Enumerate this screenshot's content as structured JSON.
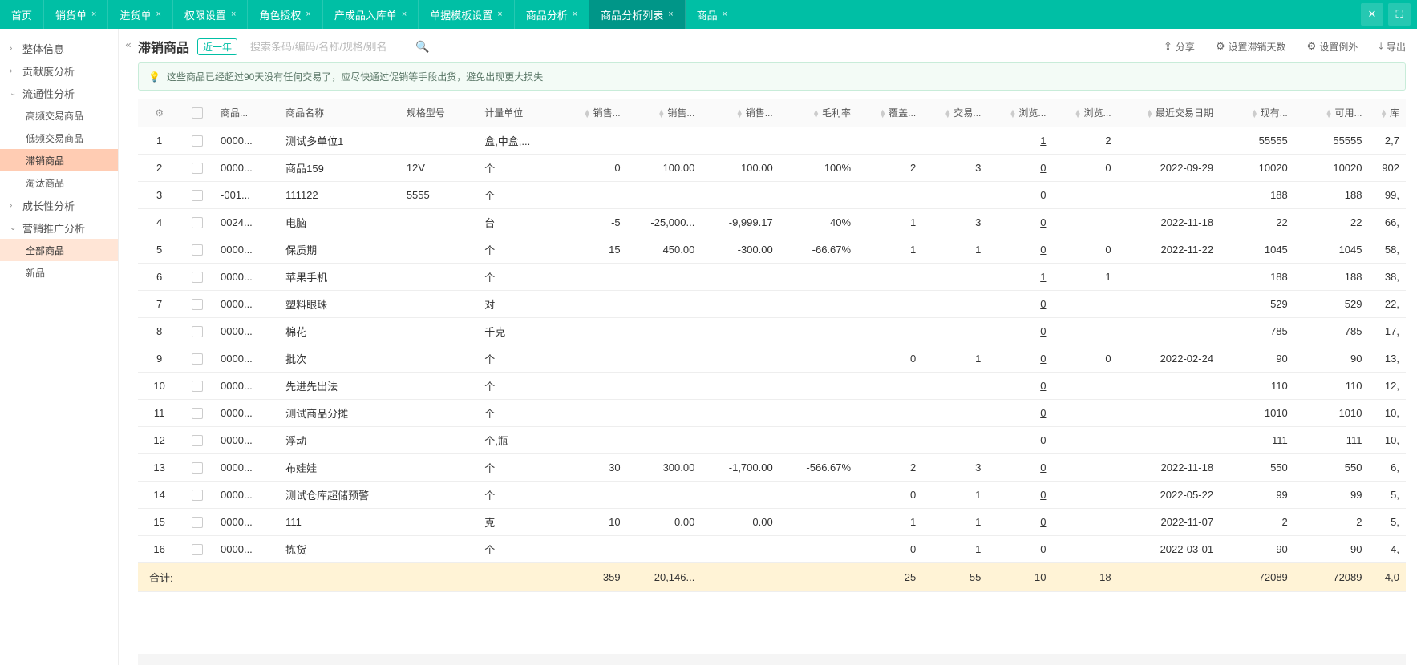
{
  "tabs": [
    {
      "label": "首页",
      "closable": false
    },
    {
      "label": "销货单",
      "closable": true
    },
    {
      "label": "进货单",
      "closable": true
    },
    {
      "label": "权限设置",
      "closable": true
    },
    {
      "label": "角色授权",
      "closable": true
    },
    {
      "label": "产成品入库单",
      "closable": true
    },
    {
      "label": "单据模板设置",
      "closable": true
    },
    {
      "label": "商品分析",
      "closable": true
    },
    {
      "label": "商品分析列表",
      "closable": true,
      "active": true
    },
    {
      "label": "商品",
      "closable": true
    }
  ],
  "sidebar": [
    {
      "label": "整体信息",
      "type": "group",
      "expanded": false
    },
    {
      "label": "贡献度分析",
      "type": "group",
      "expanded": false
    },
    {
      "label": "流通性分析",
      "type": "group",
      "expanded": true
    },
    {
      "label": "高频交易商品",
      "type": "child"
    },
    {
      "label": "低频交易商品",
      "type": "child"
    },
    {
      "label": "滞销商品",
      "type": "child",
      "active": true
    },
    {
      "label": "淘汰商品",
      "type": "child"
    },
    {
      "label": "成长性分析",
      "type": "group",
      "expanded": false
    },
    {
      "label": "营销推广分析",
      "type": "group",
      "expanded": true
    },
    {
      "label": "全部商品",
      "type": "child",
      "active2": true
    },
    {
      "label": "新品",
      "type": "child"
    }
  ],
  "header": {
    "title": "滞销商品",
    "period": "近一年",
    "searchPlaceholder": "搜索条码/编码/名称/规格/别名",
    "actions": {
      "share": "分享",
      "setDays": "设置滞销天数",
      "setException": "设置例外",
      "export": "导出"
    }
  },
  "banner": "这些商品已经超过90天没有任何交易了，应尽快通过促销等手段出货，避免出现更大损失",
  "columns": [
    "商品...",
    "商品名称",
    "规格型号",
    "计量单位",
    "销售...",
    "销售...",
    "销售...",
    "毛利率",
    "覆盖...",
    "交易...",
    "浏览...",
    "浏览...",
    "最近交易日期",
    "现有...",
    "可用...",
    "库"
  ],
  "rows": [
    {
      "idx": 1,
      "code": "0000...",
      "name": "测试多单位1",
      "spec": "",
      "unit": "盒,中盒,...",
      "s1": "",
      "s2": "",
      "s3": "",
      "gross": "",
      "cov": "",
      "trade": "",
      "brw": "1",
      "brw2": "2",
      "date": "",
      "stk": "55555",
      "avail": "55555",
      "inv": "2,7"
    },
    {
      "idx": 2,
      "code": "0000...",
      "name": "商品159",
      "spec": "12V",
      "unit": "个",
      "s1": "0",
      "s2": "100.00",
      "s3": "100.00",
      "gross": "100%",
      "cov": "2",
      "trade": "3",
      "brw": "0",
      "brw2": "0",
      "date": "2022-09-29",
      "stk": "10020",
      "avail": "10020",
      "inv": "902"
    },
    {
      "idx": 3,
      "code": "-001...",
      "name": "111122",
      "spec": "5555",
      "unit": "个",
      "s1": "",
      "s2": "",
      "s3": "",
      "gross": "",
      "cov": "",
      "trade": "",
      "brw": "0",
      "brw2": "",
      "date": "",
      "stk": "188",
      "avail": "188",
      "inv": "99,"
    },
    {
      "idx": 4,
      "code": "0024...",
      "name": "电脑",
      "spec": "",
      "unit": "台",
      "s1": "-5",
      "s2": "-25,000...",
      "s3": "-9,999.17",
      "gross": "40%",
      "cov": "1",
      "trade": "3",
      "brw": "0",
      "brw2": "",
      "date": "2022-11-18",
      "stk": "22",
      "avail": "22",
      "inv": "66,"
    },
    {
      "idx": 5,
      "code": "0000...",
      "name": "保质期",
      "spec": "",
      "unit": "个",
      "s1": "15",
      "s2": "450.00",
      "s3": "-300.00",
      "gross": "-66.67%",
      "cov": "1",
      "trade": "1",
      "brw": "0",
      "brw2": "0",
      "date": "2022-11-22",
      "stk": "1045",
      "avail": "1045",
      "inv": "58,"
    },
    {
      "idx": 6,
      "code": "0000...",
      "name": "苹果手机",
      "spec": "",
      "unit": "个",
      "s1": "",
      "s2": "",
      "s3": "",
      "gross": "",
      "cov": "",
      "trade": "",
      "brw": "1",
      "brw2": "1",
      "date": "",
      "stk": "188",
      "avail": "188",
      "inv": "38,"
    },
    {
      "idx": 7,
      "code": "0000...",
      "name": "塑料眼珠",
      "spec": "",
      "unit": "对",
      "s1": "",
      "s2": "",
      "s3": "",
      "gross": "",
      "cov": "",
      "trade": "",
      "brw": "0",
      "brw2": "",
      "date": "",
      "stk": "529",
      "avail": "529",
      "inv": "22,"
    },
    {
      "idx": 8,
      "code": "0000...",
      "name": "棉花",
      "spec": "",
      "unit": "千克",
      "s1": "",
      "s2": "",
      "s3": "",
      "gross": "",
      "cov": "",
      "trade": "",
      "brw": "0",
      "brw2": "",
      "date": "",
      "stk": "785",
      "avail": "785",
      "inv": "17,"
    },
    {
      "idx": 9,
      "code": "0000...",
      "name": "批次",
      "spec": "",
      "unit": "个",
      "s1": "",
      "s2": "",
      "s3": "",
      "gross": "",
      "cov": "0",
      "trade": "1",
      "brw": "0",
      "brw2": "0",
      "date": "2022-02-24",
      "stk": "90",
      "avail": "90",
      "inv": "13,"
    },
    {
      "idx": 10,
      "code": "0000...",
      "name": "先进先出法",
      "spec": "",
      "unit": "个",
      "s1": "",
      "s2": "",
      "s3": "",
      "gross": "",
      "cov": "",
      "trade": "",
      "brw": "0",
      "brw2": "",
      "date": "",
      "stk": "110",
      "avail": "110",
      "inv": "12,"
    },
    {
      "idx": 11,
      "code": "0000...",
      "name": "测试商品分摊",
      "spec": "",
      "unit": "个",
      "s1": "",
      "s2": "",
      "s3": "",
      "gross": "",
      "cov": "",
      "trade": "",
      "brw": "0",
      "brw2": "",
      "date": "",
      "stk": "1010",
      "avail": "1010",
      "inv": "10,"
    },
    {
      "idx": 12,
      "code": "0000...",
      "name": "浮动",
      "spec": "",
      "unit": "个,瓶",
      "s1": "",
      "s2": "",
      "s3": "",
      "gross": "",
      "cov": "",
      "trade": "",
      "brw": "0",
      "brw2": "",
      "date": "",
      "stk": "111",
      "avail": "111",
      "inv": "10,"
    },
    {
      "idx": 13,
      "code": "0000...",
      "name": "布娃娃",
      "spec": "",
      "unit": "个",
      "s1": "30",
      "s2": "300.00",
      "s3": "-1,700.00",
      "gross": "-566.67%",
      "cov": "2",
      "trade": "3",
      "brw": "0",
      "brw2": "",
      "date": "2022-11-18",
      "stk": "550",
      "avail": "550",
      "inv": "6,"
    },
    {
      "idx": 14,
      "code": "0000...",
      "name": "测试仓库超储预警",
      "spec": "",
      "unit": "个",
      "s1": "",
      "s2": "",
      "s3": "",
      "gross": "",
      "cov": "0",
      "trade": "1",
      "brw": "0",
      "brw2": "",
      "date": "2022-05-22",
      "stk": "99",
      "avail": "99",
      "inv": "5,"
    },
    {
      "idx": 15,
      "code": "0000...",
      "name": "111",
      "spec": "",
      "unit": "克",
      "s1": "10",
      "s2": "0.00",
      "s3": "0.00",
      "gross": "",
      "cov": "1",
      "trade": "1",
      "brw": "0",
      "brw2": "",
      "date": "2022-11-07",
      "stk": "2",
      "avail": "2",
      "inv": "5,"
    },
    {
      "idx": 16,
      "code": "0000...",
      "name": "拣货",
      "spec": "",
      "unit": "个",
      "s1": "",
      "s2": "",
      "s3": "",
      "gross": "",
      "cov": "0",
      "trade": "1",
      "brw": "0",
      "brw2": "",
      "date": "2022-03-01",
      "stk": "90",
      "avail": "90",
      "inv": "4,"
    }
  ],
  "totals": {
    "label": "合计:",
    "s1": "359",
    "s2": "-20,146...",
    "cov": "25",
    "trade": "55",
    "brw": "10",
    "brw2": "18",
    "stk": "72089",
    "avail": "72089",
    "inv": "4,0"
  }
}
